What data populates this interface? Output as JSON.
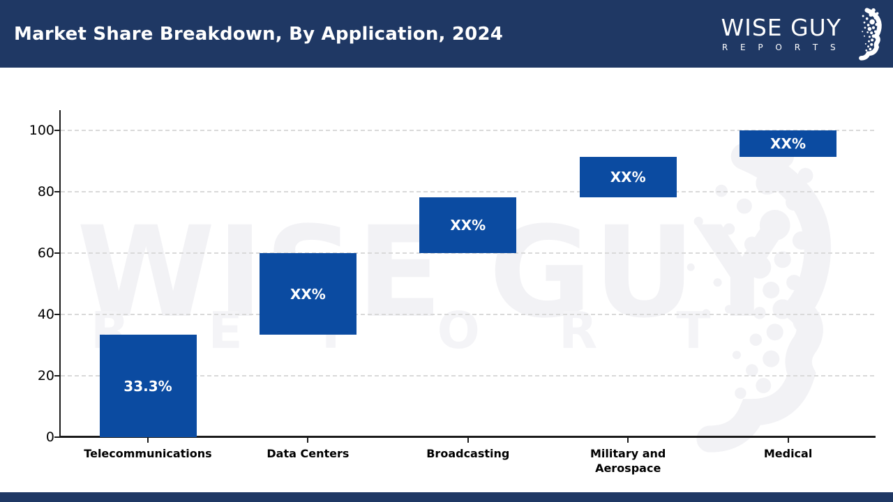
{
  "header": {
    "title": "Market Share Breakdown, By Application, 2024",
    "logo": {
      "line1": "WISE GUY",
      "line2": "R E P O R T S"
    }
  },
  "watermark": {
    "line1": "WISE GUY",
    "line2": "R E P O R T S"
  },
  "colors": {
    "header_bg": "#1f3864",
    "footer_bg": "#1f3864",
    "bar": "#0b4ba1",
    "grid": "#d9d9d9",
    "bar_label": "#ffffff",
    "axis": "#1a1a1a"
  },
  "chart_data": {
    "type": "bar",
    "subtype": "waterfall",
    "title": "Market Share Breakdown, By Application, 2024",
    "categories": [
      {
        "label": "Telecommunications",
        "lines": [
          "Telecommunications"
        ]
      },
      {
        "label": "Data Centers",
        "lines": [
          "Data Centers"
        ]
      },
      {
        "label": "Broadcasting",
        "lines": [
          "Broadcasting"
        ]
      },
      {
        "label": "Military and Aerospace",
        "lines": [
          "Military and",
          "Aerospace"
        ]
      },
      {
        "label": "Medical",
        "lines": [
          "Medical"
        ]
      }
    ],
    "segments": [
      {
        "category": "Telecommunications",
        "from": 0,
        "to": 33.3,
        "label": "33.3%"
      },
      {
        "category": "Data Centers",
        "from": 33.3,
        "to": 60,
        "label": "XX%"
      },
      {
        "category": "Broadcasting",
        "from": 60,
        "to": 78.2,
        "label": "XX%"
      },
      {
        "category": "Military and Aerospace",
        "from": 78.2,
        "to": 91.4,
        "label": "XX%"
      },
      {
        "category": "Medical",
        "from": 91.4,
        "to": 100,
        "label": "XX%"
      }
    ],
    "xlabel": "",
    "ylabel": "",
    "ylim": [
      0,
      100
    ],
    "yticks": [
      0,
      20,
      40,
      60,
      80,
      100
    ],
    "grid": "horizontal-dashed",
    "legend": "none"
  }
}
